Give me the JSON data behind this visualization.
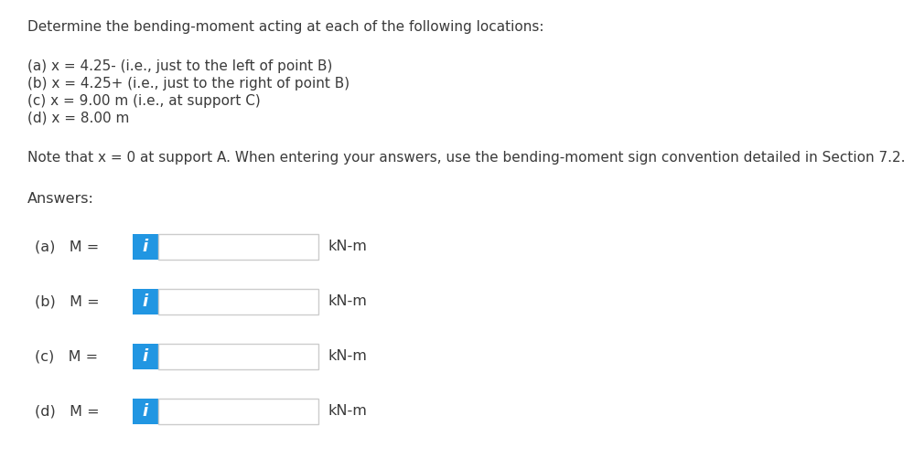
{
  "title_text": "Determine the bending-moment acting at each of the following locations:",
  "item_texts": [
    "(a) x = 4.25- (i.e., just to the left of point B)",
    "(b) x = 4.25+ (i.e., just to the right of point B)",
    "(c) x = 9.00 m (i.e., at support C)",
    "(d) x = 8.00 m"
  ],
  "note_text": "Note that x = 0 at support A. When entering your answers, use the bending-moment sign convention detailed in Section 7.2.",
  "answers_label": "Answers:",
  "answer_labels": [
    "(a)",
    "(b)",
    "(c)",
    "(d)"
  ],
  "unit_text": "kN-m",
  "background_color": "#ffffff",
  "text_color": "#3a3a3a",
  "box_border_color": "#cccccc",
  "blue_button_color": "#2196e2",
  "blue_button_text": "i",
  "title_fontsize": 11.0,
  "item_fontsize": 11.0,
  "note_fontsize": 11.0,
  "label_fontsize": 11.5,
  "unit_fontsize": 11.5
}
